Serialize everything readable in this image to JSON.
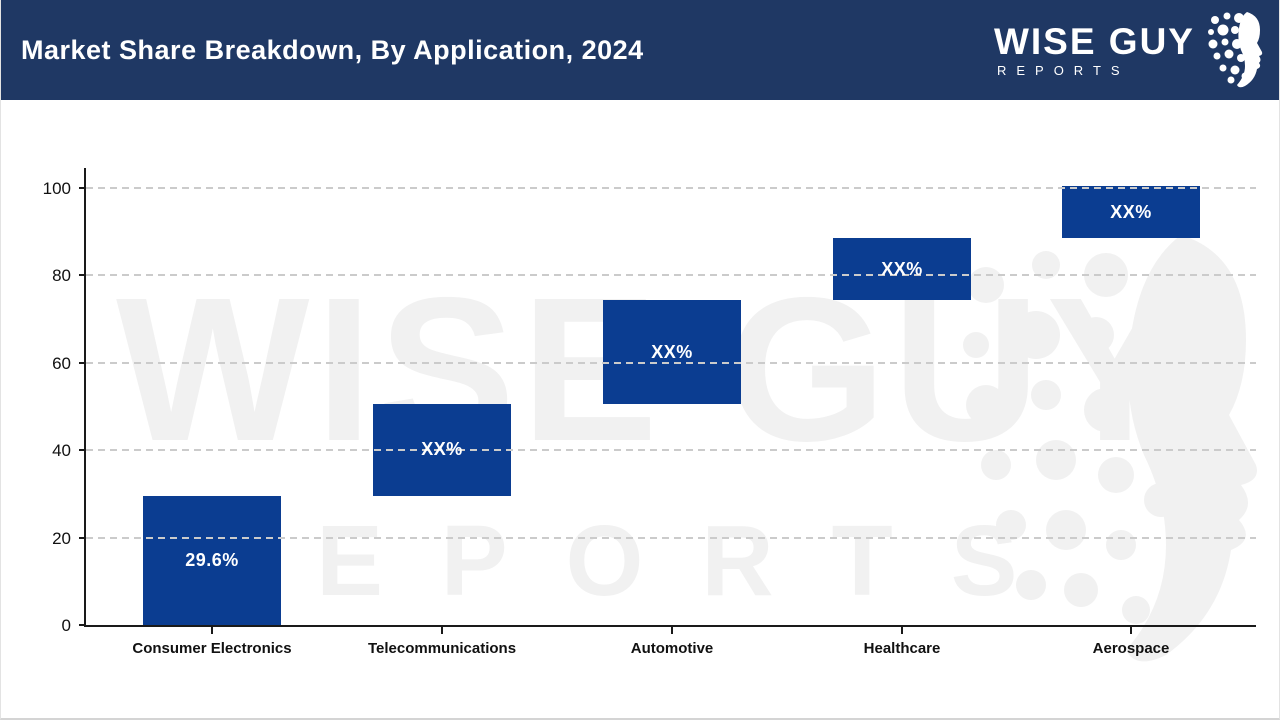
{
  "header": {
    "title": "Market Share Breakdown, By Application, 2024",
    "bg_color": "#1f3864",
    "logo": {
      "line1": "WISE GUY",
      "line2": "REPORTS"
    }
  },
  "watermark": {
    "line1": "WISE GUY",
    "line2": "REPORTS"
  },
  "chart_data": {
    "type": "bar",
    "subtype": "waterfall",
    "title": "Market Share Breakdown, By Application, 2024",
    "xlabel": "",
    "ylabel": "",
    "ylim": [
      0,
      105
    ],
    "yticks": [
      0,
      20,
      40,
      60,
      80,
      100
    ],
    "grid": "horizontal-dashed",
    "legend": "none",
    "bar_color": "#0b3d91",
    "label_color": "#ffffff",
    "categories": [
      "Consumer Electronics",
      "Telecommunications",
      "Automotive",
      "Healthcare",
      "Aerospace"
    ],
    "segments": [
      {
        "category": "Consumer Electronics",
        "start": 0,
        "end": 29.6,
        "label": "29.6%"
      },
      {
        "category": "Telecommunications",
        "start": 29.6,
        "end": 50.6,
        "label": "XX%"
      },
      {
        "category": "Automotive",
        "start": 50.6,
        "end": 74.2,
        "label": "XX%"
      },
      {
        "category": "Healthcare",
        "start": 74.2,
        "end": 88.4,
        "label": "XX%"
      },
      {
        "category": "Aerospace",
        "start": 88.4,
        "end": 100.4,
        "label": "XX%"
      }
    ]
  }
}
